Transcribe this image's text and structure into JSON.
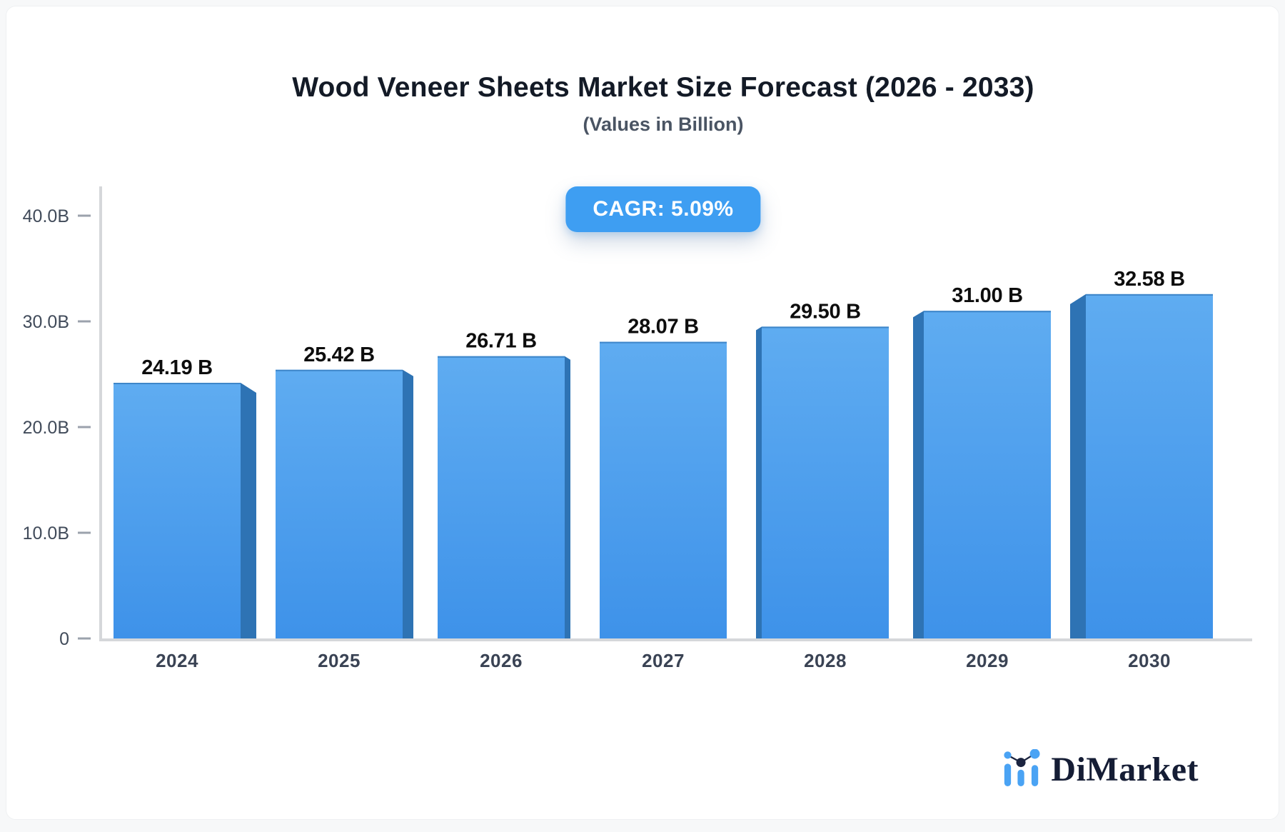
{
  "colors": {
    "page_bg": "#f7f8f9",
    "card_bg": "#ffffff",
    "title": "#131a26",
    "subtitle": "#4a5463",
    "badge_bg": "#3e9ef2",
    "badge_text": "#ffffff",
    "bar_top": "#5facf1",
    "bar_bottom": "#3e92e9",
    "bar_side": "#2e73b4",
    "bar_top_edge": "#3e86c9",
    "axis_line": "#d5d7da",
    "tick_dash": "#9ba2ac",
    "tick_text": "#414b5a",
    "x_label": "#3a4354",
    "value_label": "#0d0d0d",
    "logo_text": "#151d35",
    "logo_blue": "#4aa3f4",
    "logo_navy": "#1b2440"
  },
  "chart_data": {
    "type": "bar",
    "title": "Wood Veneer Sheets Market Size Forecast (2026 - 2033)",
    "subtitle": "(Values in Billion)",
    "cagr_badge": "CAGR: 5.09%",
    "categories": [
      "2024",
      "2025",
      "2026",
      "2027",
      "2028",
      "2029",
      "2030"
    ],
    "values": [
      24.19,
      25.42,
      26.71,
      28.07,
      29.5,
      31.0,
      32.58
    ],
    "bar_labels": [
      "24.19 B",
      "25.42 B",
      "26.71 B",
      "28.07 B",
      "29.50 B",
      "31.00 B",
      "32.58 B"
    ],
    "units": "Billion",
    "ylim": [
      0,
      40
    ],
    "yticks": [
      {
        "value": 0,
        "label": "0"
      },
      {
        "value": 10,
        "label": "10.0B"
      },
      {
        "value": 20,
        "label": "20.0B"
      },
      {
        "value": 30,
        "label": "30.0B"
      },
      {
        "value": 40,
        "label": "40.0B"
      }
    ],
    "xlabel": "",
    "ylabel": "",
    "grid": "off",
    "legend": "none",
    "bar_style": "3d-perspective"
  },
  "footer": {
    "brand": "DiMarket"
  }
}
